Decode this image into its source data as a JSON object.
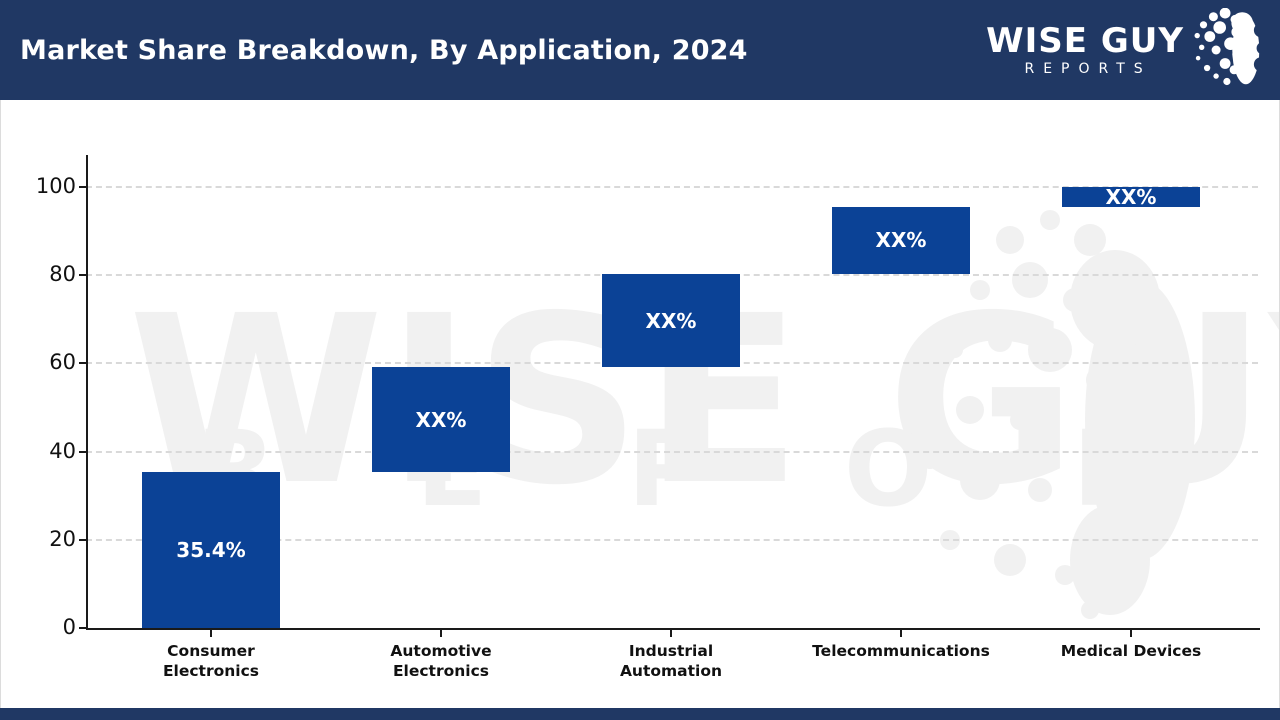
{
  "header": {
    "title": "Market Share Breakdown, By Application, 2024",
    "logo": {
      "top": "WISE GUY",
      "bottom": "REPORTS"
    }
  },
  "watermark": {
    "line1": "WISE GUY",
    "line2": "R E P O R T S"
  },
  "chart_data": {
    "type": "bar",
    "subtype": "waterfall",
    "title": "Market Share Breakdown, By Application, 2024",
    "categories": [
      "Consumer Electronics",
      "Automotive Electronics",
      "Industrial Automation",
      "Telecommunications",
      "Medical Devices"
    ],
    "category_lines": [
      [
        "Consumer",
        "Electronics"
      ],
      [
        "Automotive",
        "Electronics"
      ],
      [
        "Industrial",
        "Automation"
      ],
      [
        "Telecommunications"
      ],
      [
        "Medical Devices"
      ]
    ],
    "segments": [
      {
        "category": "Consumer Electronics",
        "start": 0,
        "end": 35.4,
        "label": "35.4%"
      },
      {
        "category": "Automotive Electronics",
        "start": 35.4,
        "end": 59.1,
        "label": "XX%"
      },
      {
        "category": "Industrial Automation",
        "start": 59.1,
        "end": 80.3,
        "label": "XX%"
      },
      {
        "category": "Telecommunications",
        "start": 80.3,
        "end": 95.5,
        "label": "XX%"
      },
      {
        "category": "Medical Devices",
        "start": 95.5,
        "end": 100,
        "label": "XX%"
      }
    ],
    "yticks": [
      0,
      20,
      40,
      60,
      80,
      100
    ],
    "ylim": [
      0,
      107
    ],
    "grid": "horizontal-dashed",
    "legend": "none"
  },
  "colors": {
    "header_bg": "#203864",
    "footer_bg": "#203864",
    "bar": "#0b4296",
    "bar_label": "#ffffff",
    "grid": "#d9d9d9",
    "axis": "#1a1a1a",
    "watermark": "#f1f1f1"
  }
}
